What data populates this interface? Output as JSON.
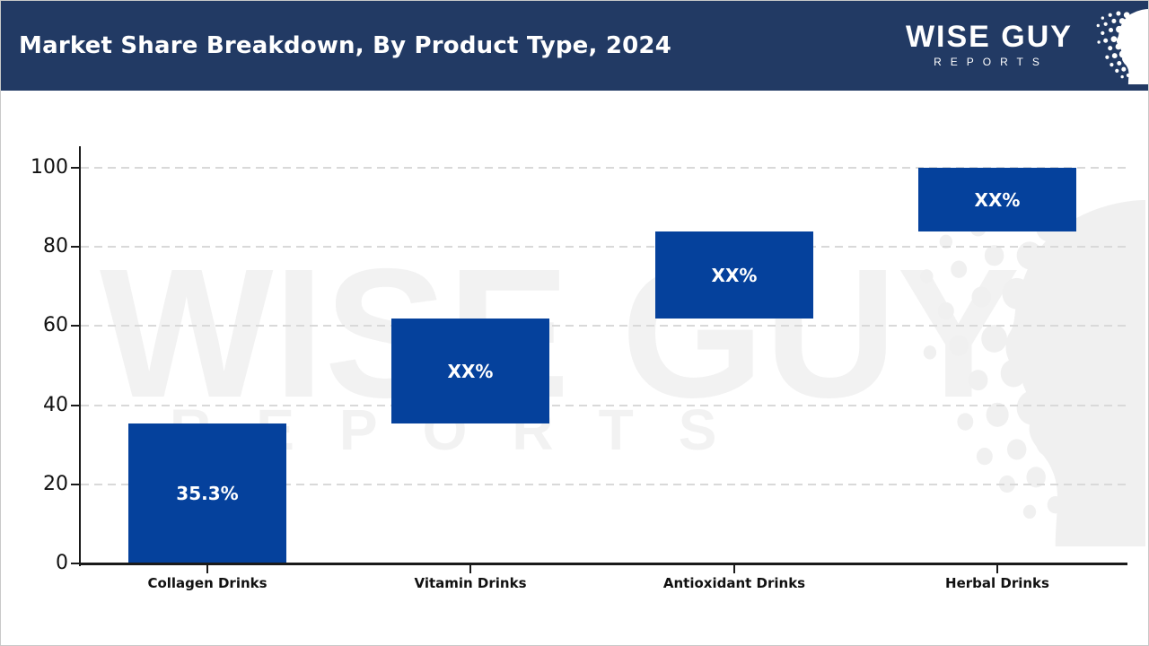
{
  "header": {
    "title": "Market Share Breakdown, By Product Type, 2024",
    "background_color": "#223a64",
    "logo": {
      "line1": "WISE GUY",
      "line2": "REPORTS"
    }
  },
  "watermark": {
    "line1": "WISE GUY",
    "line2": "REPORTS"
  },
  "chart_data": {
    "type": "bar",
    "subtype": "waterfall",
    "title": "Market Share Breakdown, By Product Type, 2024",
    "categories": [
      "Collagen Drinks",
      "Vitamin Drinks",
      "Antioxidant Drinks",
      "Herbal Drinks"
    ],
    "series": [
      {
        "name": "Market share (%)",
        "segments": [
          {
            "category": "Collagen Drinks",
            "from": 0,
            "to": 35.3,
            "label": "35.3%"
          },
          {
            "category": "Vitamin Drinks",
            "from": 35.3,
            "to": 61.9,
            "label": "XX%"
          },
          {
            "category": "Antioxidant Drinks",
            "from": 61.9,
            "to": 83.9,
            "label": "XX%"
          },
          {
            "category": "Herbal Drinks",
            "from": 83.9,
            "to": 100,
            "label": "XX%"
          }
        ]
      }
    ],
    "xlabel": "",
    "ylabel": "",
    "ylim": [
      0,
      100
    ],
    "yticks": [
      0,
      20,
      40,
      60,
      80,
      100
    ],
    "grid": "horizontal-dashed",
    "legend": "none",
    "bar_color": "#05419c",
    "bar_label_color": "#ffffff",
    "axis_color": "#1a1a1a",
    "gridline_color": "#d9d9d9"
  }
}
